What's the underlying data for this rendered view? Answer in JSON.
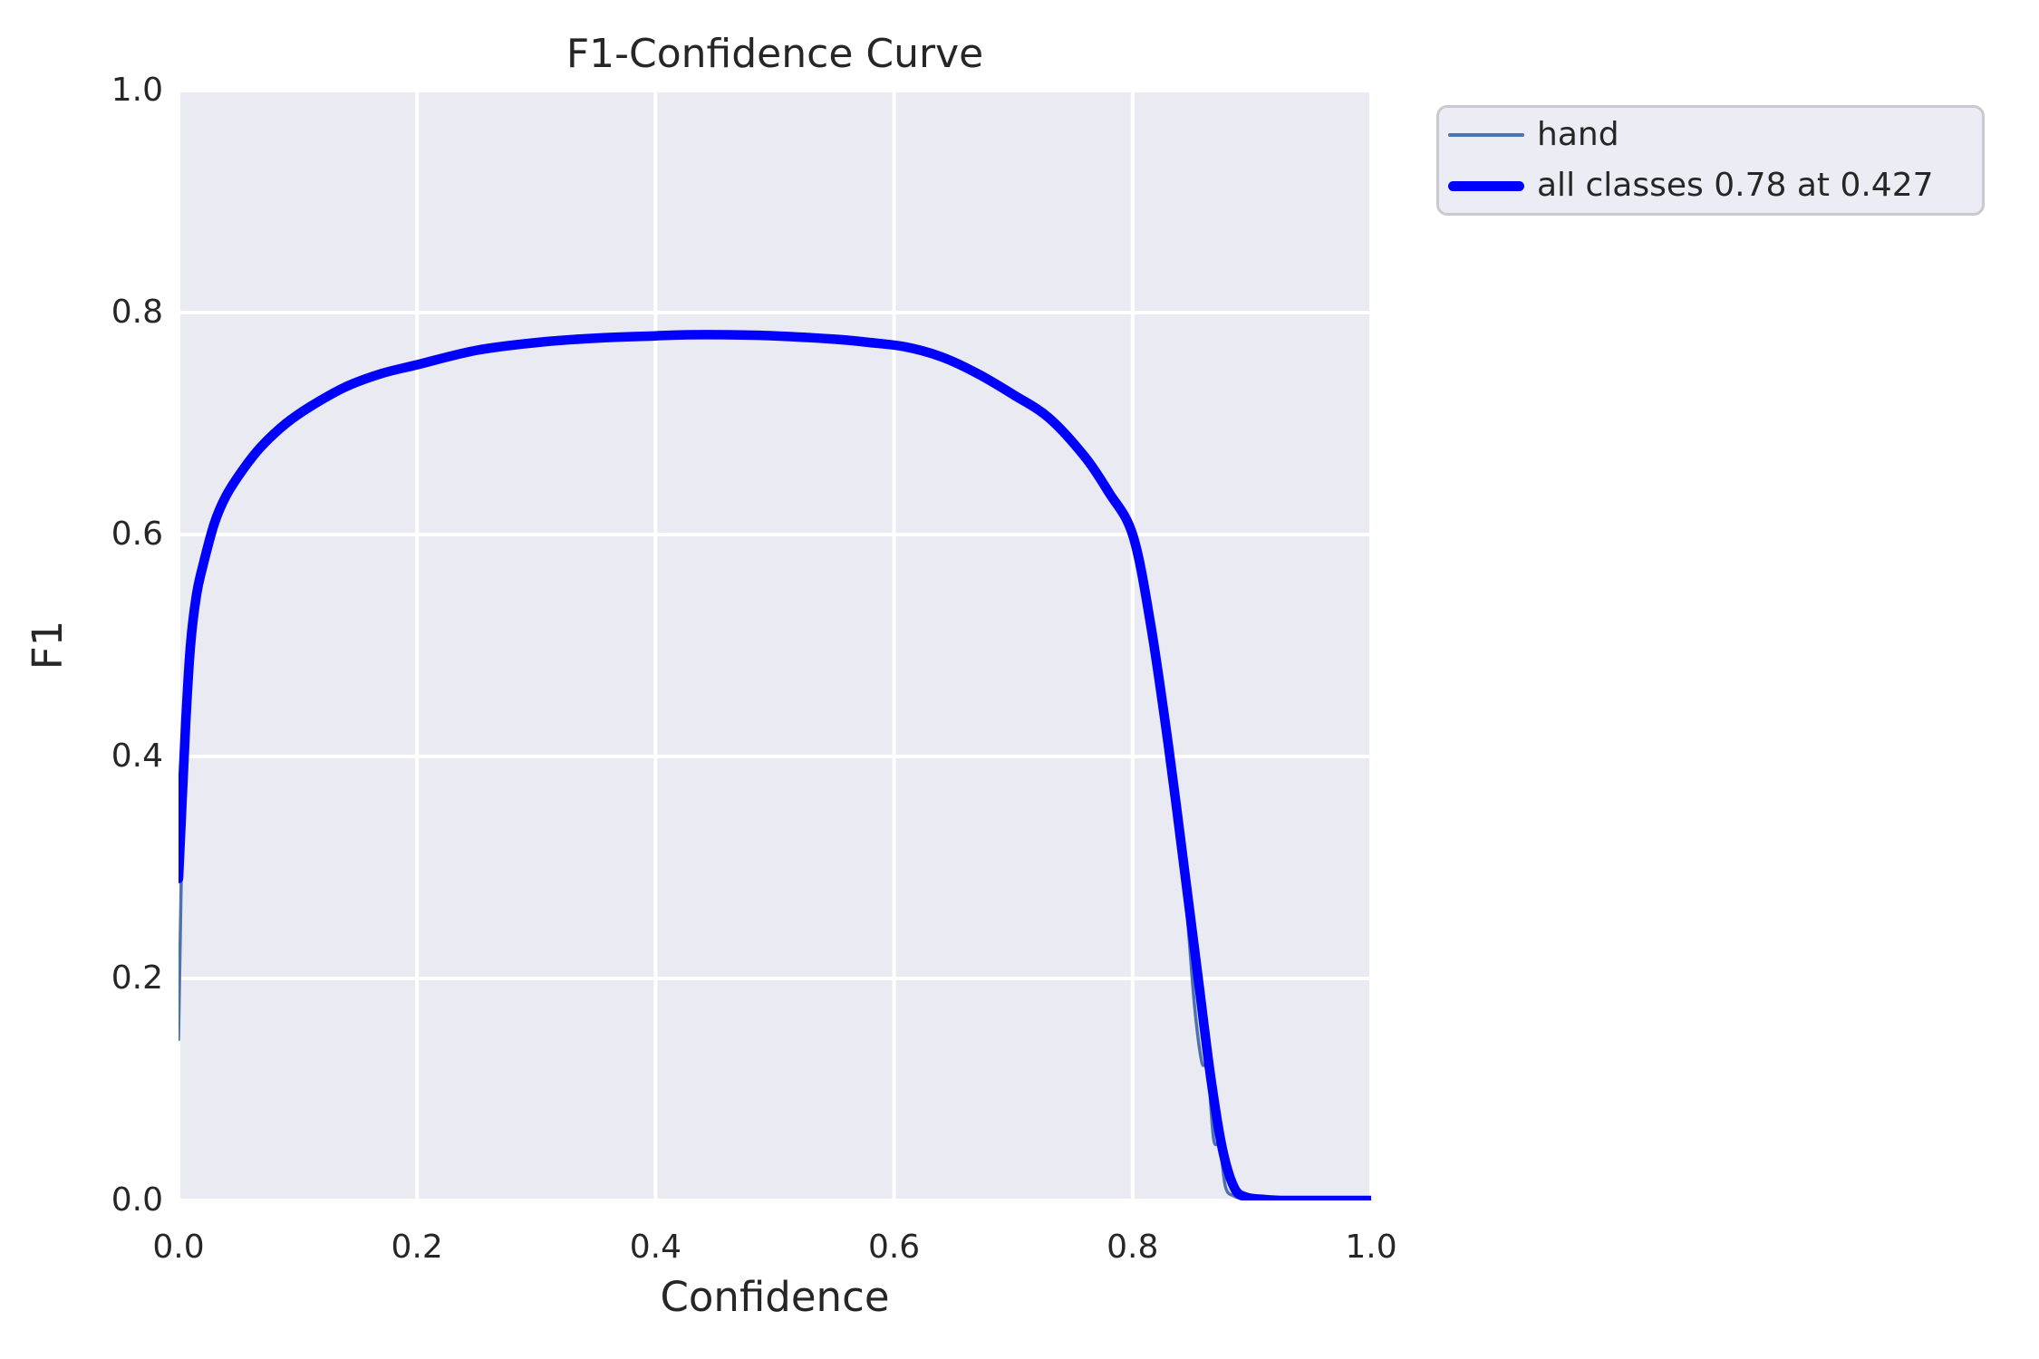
{
  "figure": {
    "background": "#ffffff",
    "plot_background": "#eaeaf2",
    "grid_color": "#ffffff",
    "text_color": "#262626",
    "legend_background": "#ececf4",
    "legend_border": "#c9c9cf"
  },
  "chart_data": {
    "type": "line",
    "title": "F1-Confidence Curve",
    "xlabel": "Confidence",
    "ylabel": "F1",
    "xlim": [
      0.0,
      1.0
    ],
    "ylim": [
      0.0,
      1.0
    ],
    "xticks": [
      "0.0",
      "0.2",
      "0.4",
      "0.6",
      "0.8",
      "1.0"
    ],
    "yticks": [
      "0.0",
      "0.2",
      "0.4",
      "0.6",
      "0.8",
      "1.0"
    ],
    "grid": true,
    "legend_position": "outside-upper-right",
    "best_f1": 0.78,
    "best_confidence": 0.427,
    "series": [
      {
        "name": "hand",
        "color": "#4c72b0",
        "linewidth": 3.5,
        "x": [
          0.0,
          0.002,
          0.004,
          0.008,
          0.012,
          0.018,
          0.025,
          0.035,
          0.05,
          0.07,
          0.09,
          0.11,
          0.14,
          0.17,
          0.2,
          0.25,
          0.3,
          0.35,
          0.4,
          0.427,
          0.46,
          0.5,
          0.55,
          0.58,
          0.61,
          0.64,
          0.67,
          0.7,
          0.73,
          0.76,
          0.78,
          0.8,
          0.815,
          0.83,
          0.843,
          0.852,
          0.858,
          0.863,
          0.868,
          0.873,
          0.878,
          0.885,
          0.895,
          0.91,
          1.0
        ],
        "y": [
          0.145,
          0.27,
          0.38,
          0.47,
          0.52,
          0.555,
          0.59,
          0.62,
          0.65,
          0.68,
          0.7,
          0.715,
          0.733,
          0.745,
          0.753,
          0.766,
          0.773,
          0.777,
          0.779,
          0.78,
          0.78,
          0.779,
          0.776,
          0.773,
          0.769,
          0.76,
          0.745,
          0.726,
          0.705,
          0.67,
          0.638,
          0.6,
          0.515,
          0.4,
          0.29,
          0.175,
          0.125,
          0.118,
          0.055,
          0.05,
          0.012,
          0.004,
          0.001,
          0.0,
          0.0
        ]
      },
      {
        "name": "all classes",
        "color": "#0000ff",
        "linewidth": 10.5,
        "x": [
          0.0,
          0.003,
          0.006,
          0.01,
          0.015,
          0.02,
          0.03,
          0.04,
          0.055,
          0.07,
          0.09,
          0.11,
          0.14,
          0.17,
          0.2,
          0.25,
          0.3,
          0.35,
          0.4,
          0.427,
          0.46,
          0.5,
          0.55,
          0.58,
          0.61,
          0.64,
          0.67,
          0.7,
          0.73,
          0.76,
          0.78,
          0.8,
          0.815,
          0.83,
          0.845,
          0.855,
          0.865,
          0.875,
          0.885,
          0.895,
          0.91,
          0.93,
          1.0
        ],
        "y": [
          0.29,
          0.36,
          0.43,
          0.5,
          0.545,
          0.57,
          0.61,
          0.635,
          0.66,
          0.68,
          0.7,
          0.715,
          0.733,
          0.745,
          0.753,
          0.766,
          0.773,
          0.777,
          0.779,
          0.78,
          0.78,
          0.779,
          0.776,
          0.773,
          0.769,
          0.76,
          0.745,
          0.726,
          0.705,
          0.67,
          0.638,
          0.6,
          0.52,
          0.41,
          0.285,
          0.2,
          0.115,
          0.048,
          0.012,
          0.003,
          0.001,
          0.0,
          0.0
        ]
      }
    ]
  },
  "legend": {
    "items": [
      {
        "label": "hand",
        "color": "#4c72b0",
        "thickness": 4
      },
      {
        "label": "all classes 0.78 at 0.427",
        "color": "#0000ff",
        "thickness": 11
      }
    ]
  }
}
